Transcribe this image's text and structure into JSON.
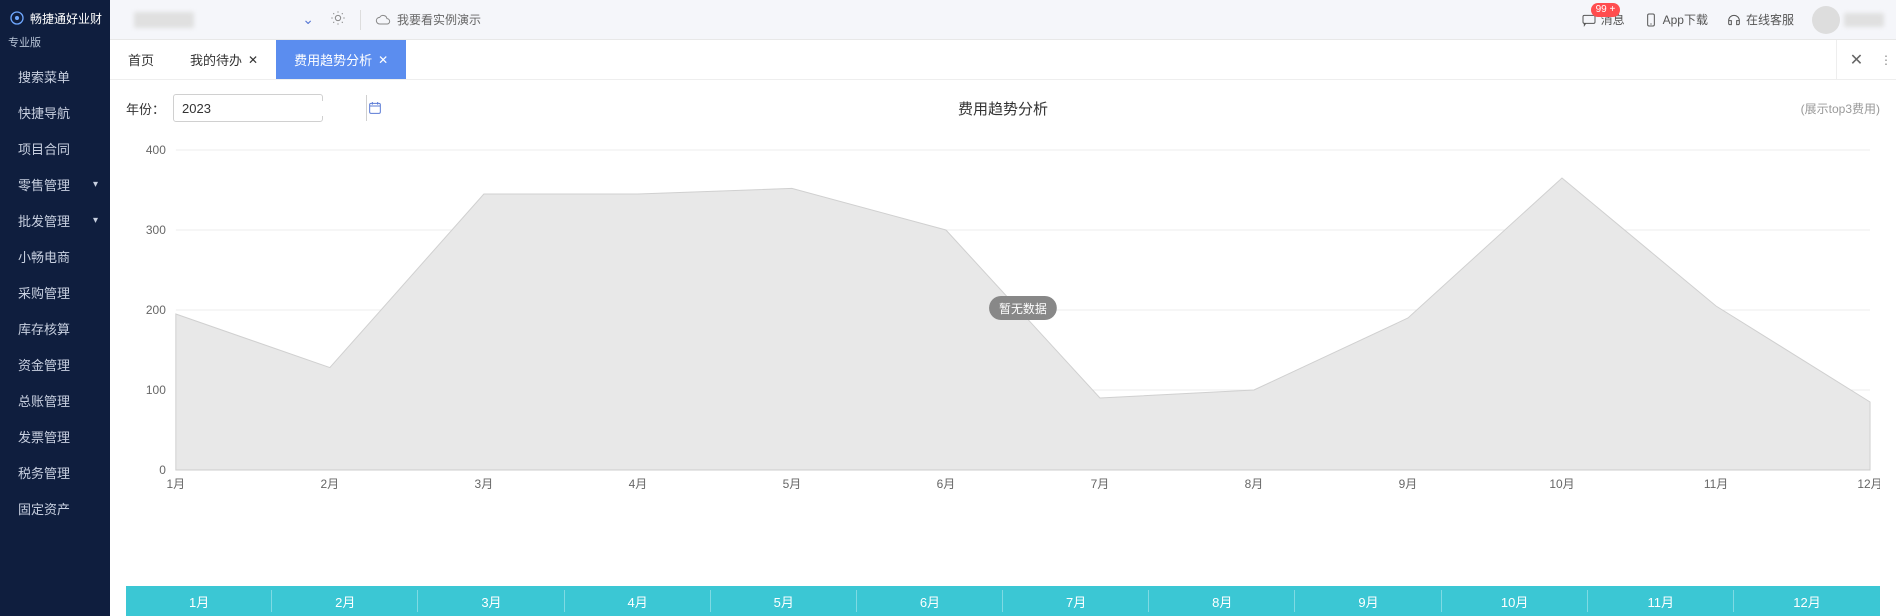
{
  "brand": {
    "name": "畅捷通好业财",
    "edition": "专业版"
  },
  "sidebar": {
    "items": [
      {
        "label": "搜索菜单",
        "expandable": false
      },
      {
        "label": "快捷导航",
        "expandable": false
      },
      {
        "label": "项目合同",
        "expandable": false
      },
      {
        "label": "零售管理",
        "expandable": true
      },
      {
        "label": "批发管理",
        "expandable": true
      },
      {
        "label": "小畅电商",
        "expandable": false
      },
      {
        "label": "采购管理",
        "expandable": false
      },
      {
        "label": "库存核算",
        "expandable": false
      },
      {
        "label": "资金管理",
        "expandable": false
      },
      {
        "label": "总账管理",
        "expandable": false
      },
      {
        "label": "发票管理",
        "expandable": false
      },
      {
        "label": "税务管理",
        "expandable": false
      },
      {
        "label": "固定资产",
        "expandable": false
      }
    ]
  },
  "topbar": {
    "demo_label": "我要看实例演示",
    "messages_label": "消息",
    "messages_badge": "99 +",
    "app_label": "App下载",
    "service_label": "在线客服"
  },
  "tabs": [
    {
      "label": "首页",
      "closable": false,
      "active": false
    },
    {
      "label": "我的待办",
      "closable": true,
      "active": false
    },
    {
      "label": "费用趋势分析",
      "closable": true,
      "active": true
    }
  ],
  "filter": {
    "year_label": "年份：",
    "year_value": "2023"
  },
  "chart": {
    "title": "费用趋势分析",
    "note": "(展示top3费用)",
    "tooltip": "暂无数据",
    "type": "area",
    "ylim": [
      0,
      400
    ],
    "ytick_step": 100,
    "y_ticks": [
      0,
      100,
      200,
      300,
      400
    ],
    "x_categories": [
      "1月",
      "2月",
      "3月",
      "4月",
      "5月",
      "6月",
      "7月",
      "8月",
      "9月",
      "10月",
      "11月",
      "12月"
    ],
    "values": [
      195,
      128,
      345,
      345,
      352,
      300,
      90,
      100,
      190,
      365,
      205,
      85
    ],
    "area_fill": "#e8e8e8",
    "area_stroke": "#d0d0d0",
    "grid_color": "#eeeeee",
    "axis_color": "#cccccc",
    "background_color": "#ffffff",
    "label_color": "#666666",
    "label_fontsize": 12,
    "month_bar_color": "#3bc7d4",
    "month_bar_text_color": "#ffffff"
  }
}
